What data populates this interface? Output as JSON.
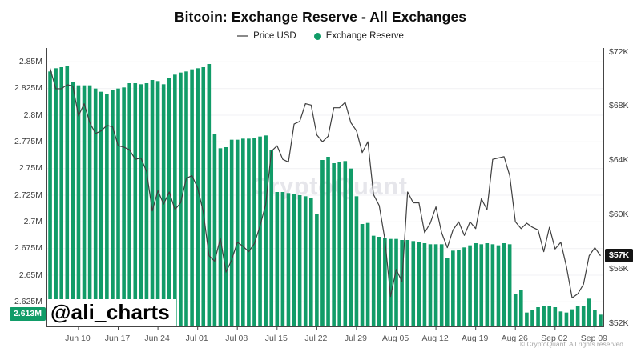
{
  "title": "Bitcoin: Exchange Reserve - All Exchanges",
  "legend": {
    "price": {
      "label": "Price USD",
      "marker": "line",
      "color": "#8a8a8a"
    },
    "reserve": {
      "label": "Exchange Reserve",
      "marker": "dot",
      "color": "#119c68"
    }
  },
  "watermark_text": "CryptoQuant",
  "author_handle": "@ali_charts",
  "copyright": "© CryptoQuant. All rights reserved",
  "colors": {
    "reserve_green": "#119c68",
    "price_line": "#3f3f3f",
    "grid": "#f1f1f4",
    "axis": "#444444",
    "watermark": "#e6e6eb",
    "badge_price_bg": "#141414"
  },
  "chart_data": {
    "type": "bar+line",
    "title": "Bitcoin: Exchange Reserve - All Exchanges",
    "legend_position": "top center",
    "grid": "horizontal, aligned to left-axis ticks",
    "x": {
      "start_date": "Jun 05",
      "end_date": "Sep 10",
      "n_points": 98,
      "tick_labels": [
        "Jun 10",
        "Jun 17",
        "Jun 24",
        "Jul 01",
        "Jul 08",
        "Jul 15",
        "Jul 22",
        "Jul 29",
        "Aug 05",
        "Aug 12",
        "Aug 19",
        "Aug 26",
        "Sep 02",
        "Sep 09"
      ],
      "tick_indices": [
        5,
        12,
        19,
        26,
        33,
        40,
        47,
        54,
        61,
        68,
        75,
        82,
        89,
        96
      ]
    },
    "left_axis": {
      "series": "Exchange Reserve",
      "unit": "M BTC",
      "tick_labels": [
        "2.85M",
        "2.825M",
        "2.8M",
        "2.775M",
        "2.75M",
        "2.725M",
        "2.7M",
        "2.675M",
        "2.65M",
        "2.625M"
      ],
      "tick_values": [
        2.85,
        2.825,
        2.8,
        2.775,
        2.75,
        2.725,
        2.7,
        2.675,
        2.65,
        2.625
      ],
      "range": [
        2.602,
        2.863
      ],
      "current_value": 2.613,
      "current_value_label": "2.613M"
    },
    "right_axis": {
      "series": "Price USD",
      "unit": "K USD",
      "tick_labels": [
        "$72K",
        "$68K",
        "$64K",
        "$60K",
        "$56K",
        "$52K"
      ],
      "tick_values": [
        72,
        68,
        64,
        60,
        56,
        52
      ],
      "range": [
        51.8,
        72.3
      ],
      "current_value": 57,
      "current_value_label": "$57K"
    },
    "series": [
      {
        "name": "Exchange Reserve",
        "type": "bar",
        "axis": "left",
        "color": "#119c68",
        "values": [
          2.841,
          2.844,
          2.845,
          2.846,
          2.831,
          2.828,
          2.828,
          2.828,
          2.825,
          2.822,
          2.82,
          2.824,
          2.825,
          2.826,
          2.83,
          2.83,
          2.829,
          2.83,
          2.833,
          2.832,
          2.829,
          2.835,
          2.838,
          2.84,
          2.841,
          2.843,
          2.844,
          2.845,
          2.848,
          2.782,
          2.769,
          2.77,
          2.777,
          2.777,
          2.778,
          2.778,
          2.779,
          2.78,
          2.781,
          2.767,
          2.728,
          2.728,
          2.727,
          2.726,
          2.725,
          2.724,
          2.722,
          2.707,
          2.758,
          2.761,
          2.755,
          2.756,
          2.757,
          2.75,
          2.724,
          2.698,
          2.699,
          2.687,
          2.686,
          2.685,
          2.684,
          2.684,
          2.683,
          2.683,
          2.682,
          2.681,
          2.68,
          2.679,
          2.679,
          2.679,
          2.666,
          2.673,
          2.674,
          2.676,
          2.678,
          2.68,
          2.679,
          2.68,
          2.679,
          2.678,
          2.68,
          2.679,
          2.632,
          2.636,
          2.615,
          2.617,
          2.62,
          2.621,
          2.621,
          2.62,
          2.616,
          2.615,
          2.618,
          2.621,
          2.621,
          2.628,
          2.617,
          2.613
        ]
      },
      {
        "name": "Price USD",
        "type": "line",
        "axis": "right",
        "color": "#3f3f3f",
        "values": [
          70.8,
          69.3,
          69.3,
          69.6,
          69.5,
          67.3,
          68.2,
          66.8,
          66.0,
          66.2,
          66.6,
          66.5,
          65.1,
          65.0,
          64.8,
          64.1,
          64.2,
          63.2,
          60.3,
          61.8,
          60.8,
          61.7,
          60.4,
          60.9,
          62.7,
          62.9,
          62.0,
          60.2,
          57.0,
          56.6,
          58.3,
          55.8,
          56.7,
          58.0,
          57.7,
          57.3,
          57.9,
          59.2,
          60.8,
          64.7,
          65.1,
          64.1,
          63.9,
          66.7,
          66.9,
          68.2,
          68.1,
          65.9,
          65.4,
          65.8,
          67.9,
          67.9,
          68.3,
          66.8,
          66.2,
          64.6,
          65.4,
          61.5,
          60.7,
          58.2,
          54.0,
          56.0,
          55.1,
          61.7,
          60.9,
          60.9,
          58.7,
          59.4,
          60.6,
          58.7,
          57.6,
          58.9,
          59.5,
          58.5,
          59.5,
          59.0,
          61.2,
          60.4,
          64.1,
          64.2,
          64.3,
          62.9,
          59.5,
          59.0,
          59.4,
          59.1,
          58.9,
          57.3,
          59.1,
          57.5,
          58.0,
          56.2,
          53.9,
          54.2,
          54.9,
          57.0,
          57.6,
          57.0
        ]
      }
    ]
  }
}
